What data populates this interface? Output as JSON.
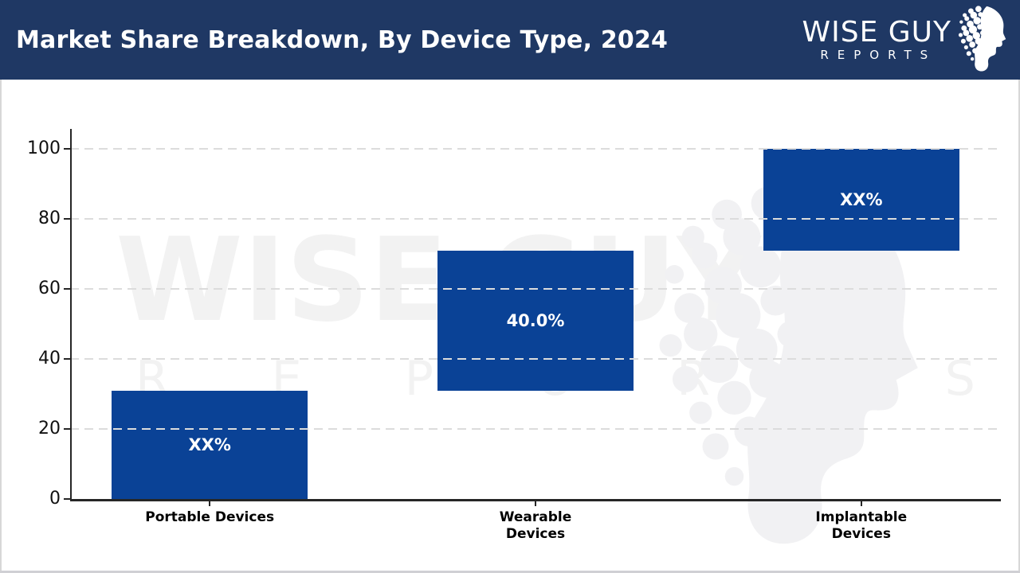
{
  "header": {
    "title": "Market Share Breakdown, By Device Type, 2024",
    "background_color": "#1F3864",
    "logo": {
      "line1": "WISE GUY",
      "line2": "REPORTS"
    }
  },
  "watermark": {
    "line1": "WISE GUY",
    "line2": "R E P O R T S"
  },
  "chart_data": {
    "type": "bar",
    "subtype": "floating-waterfall",
    "title": "Market Share Breakdown, By Device Type, 2024",
    "categories": [
      "Portable Devices",
      "Wearable Devices",
      "Implantable Devices"
    ],
    "segments": [
      {
        "category": "Portable Devices",
        "start": 0,
        "end": 31,
        "label": "XX%"
      },
      {
        "category": "Wearable Devices",
        "start": 31,
        "end": 71,
        "label": "40.0%"
      },
      {
        "category": "Implantable Devices",
        "start": 71,
        "end": 100,
        "label": "XX%"
      }
    ],
    "yticks": [
      0,
      20,
      40,
      60,
      80,
      100
    ],
    "ylim": [
      0,
      106
    ],
    "xlabel": "",
    "ylabel": "",
    "legend": "none",
    "grid": {
      "axis": "y",
      "style": "dashed",
      "color": "#DCDCDC"
    },
    "bar_color": "#0A4296",
    "bar_label_color": "#FFFFFF",
    "axis_color": "#262626"
  }
}
